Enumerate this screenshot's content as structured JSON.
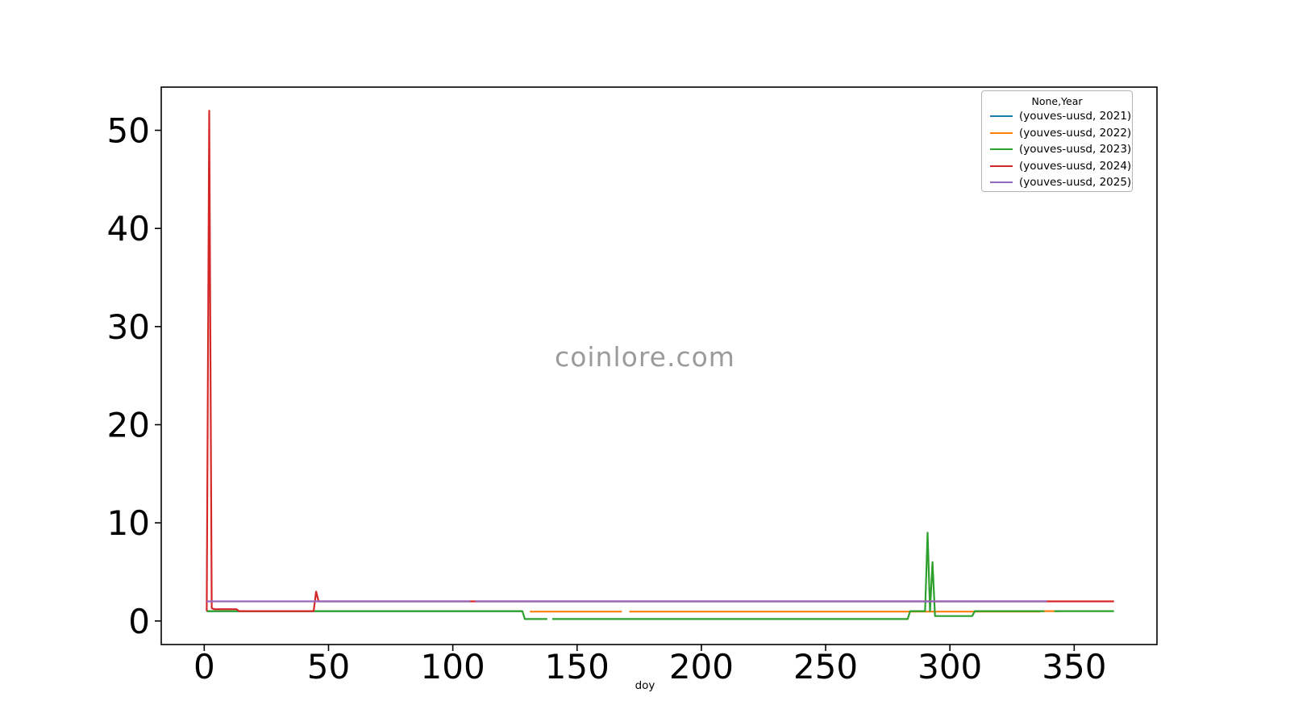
{
  "watermark": "coinlore.com",
  "chart_data": {
    "type": "line",
    "title": "",
    "xlabel": "doy",
    "ylabel": "",
    "x_ticks": [
      0,
      50,
      100,
      150,
      200,
      250,
      300,
      350
    ],
    "y_ticks": [
      0,
      10,
      20,
      30,
      40,
      50
    ],
    "xlim": [
      -17.3,
      383.3
    ],
    "ylim": [
      -2.4,
      54.4
    ],
    "grid": false,
    "legend": {
      "title": "None,Year",
      "position": "upper right",
      "entries": [
        {
          "label": "(youves-uusd, 2021)",
          "color": "#1f77b4"
        },
        {
          "label": "(youves-uusd, 2022)",
          "color": "#ff7f0e"
        },
        {
          "label": "(youves-uusd, 2023)",
          "color": "#2ca02c"
        },
        {
          "label": "(youves-uusd, 2024)",
          "color": "#d62728"
        },
        {
          "label": "(youves-uusd, 2025)",
          "color": "#9467bd"
        }
      ]
    },
    "series": [
      {
        "name": "(youves-uusd, 2021)",
        "color": "#1f77b4",
        "segments": [
          [
            [
              1,
              1.0
            ],
            [
              128,
              1.0
            ]
          ]
        ]
      },
      {
        "name": "(youves-uusd, 2022)",
        "color": "#ff7f0e",
        "segments": [
          [
            [
              131,
              0.95
            ],
            [
              168,
              0.95
            ]
          ],
          [
            [
              171,
              0.95
            ],
            [
              336,
              0.95
            ],
            [
              337,
              1.0
            ],
            [
              345,
              1.0
            ]
          ]
        ]
      },
      {
        "name": "(youves-uusd, 2023)",
        "color": "#2ca02c",
        "segments": [
          [
            [
              1,
              1.0
            ],
            [
              128,
              1.0
            ],
            [
              129,
              0.2
            ],
            [
              138,
              0.2
            ]
          ],
          [
            [
              140,
              0.2
            ],
            [
              283,
              0.2
            ],
            [
              284,
              1.0
            ],
            [
              290,
              1.0
            ],
            [
              291,
              9.0
            ],
            [
              292,
              1.0
            ],
            [
              293,
              6.0
            ],
            [
              294,
              0.5
            ],
            [
              309,
              0.5
            ],
            [
              310,
              1.0
            ],
            [
              338,
              1.0
            ]
          ],
          [
            [
              342,
              1.0
            ],
            [
              366,
              1.0
            ]
          ]
        ]
      },
      {
        "name": "(youves-uusd, 2024)",
        "color": "#d62728",
        "segments": [
          [
            [
              1,
              1.0
            ],
            [
              2,
              52.0
            ],
            [
              3,
              1.3
            ],
            [
              4,
              1.2
            ],
            [
              13,
              1.2
            ],
            [
              14,
              1.0
            ],
            [
              44,
              1.0
            ],
            [
              45,
              3.0
            ],
            [
              46,
              2.0
            ],
            [
              366,
              2.0
            ]
          ]
        ]
      },
      {
        "name": "(youves-uusd, 2025)",
        "color": "#9467bd",
        "segments": [
          [
            [
              1,
              2.0
            ],
            [
              107,
              2.0
            ]
          ],
          [
            [
              109,
              2.0
            ],
            [
              339,
              2.0
            ]
          ]
        ]
      }
    ]
  }
}
